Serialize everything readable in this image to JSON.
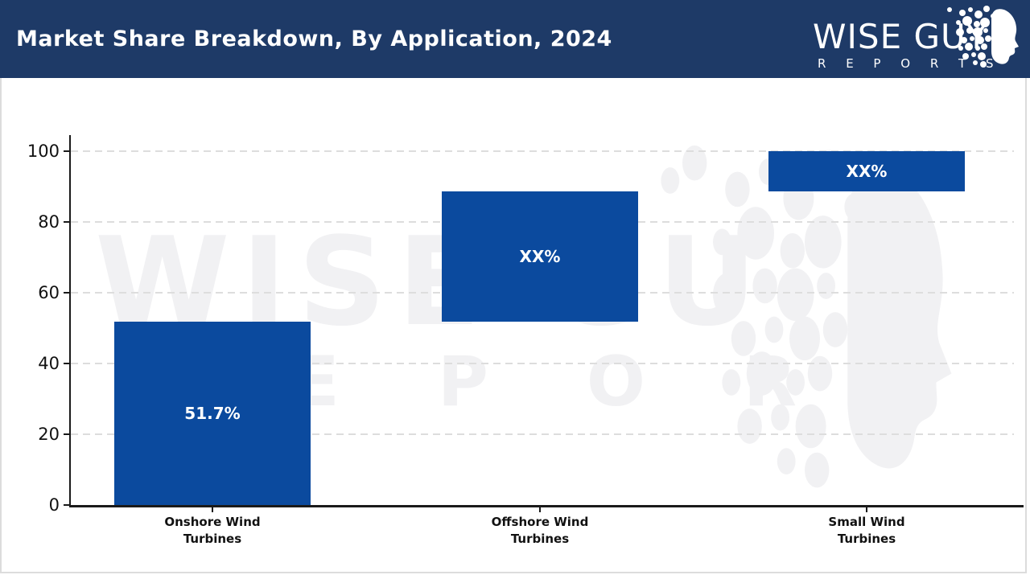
{
  "header": {
    "title": "Market Share Breakdown, By Application, 2024",
    "logo_line1": "WISE GUY",
    "logo_line2": "R E P O R T S"
  },
  "watermark": {
    "line1": "WISE GU",
    "line2": "R E P O R T S"
  },
  "chart_data": {
    "type": "bar",
    "subtype": "stacked-breakdown-waterfall",
    "title": "Market Share Breakdown, By Application, 2024",
    "xlabel": "",
    "ylabel": "",
    "ylim": [
      0,
      100
    ],
    "yticks": [
      0,
      20,
      40,
      60,
      80,
      100
    ],
    "grid": "horizontal-dashed",
    "legend": "none",
    "bar_color": "#0b4a9e",
    "bar_label_color": "#ffffff",
    "categories": [
      "Onshore Wind Turbines",
      "Offshore Wind Turbines",
      "Small Wind Turbines"
    ],
    "category_lines": [
      [
        "Onshore Wind",
        "Turbines"
      ],
      [
        "Offshore Wind",
        "Turbines"
      ],
      [
        "Small Wind",
        "Turbines"
      ]
    ],
    "bars": [
      {
        "category": "Onshore Wind Turbines",
        "label": "51.7%",
        "start": 0,
        "end": 51.7,
        "segment_value": 51.7
      },
      {
        "category": "Offshore Wind Turbines",
        "label": "XX%",
        "start": 51.7,
        "end": 88.6,
        "segment_value_est": 36.9
      },
      {
        "category": "Small Wind Turbines",
        "label": "XX%",
        "start": 88.6,
        "end": 100,
        "segment_value_est": 11.4
      }
    ]
  },
  "colors": {
    "header_bg": "#1e3a67",
    "bar": "#0b4a9e",
    "axis": "#1a1a1a",
    "gridline": "#dddddd",
    "frame_border": "#dcdcdc",
    "watermark": "#f1f1f3"
  }
}
